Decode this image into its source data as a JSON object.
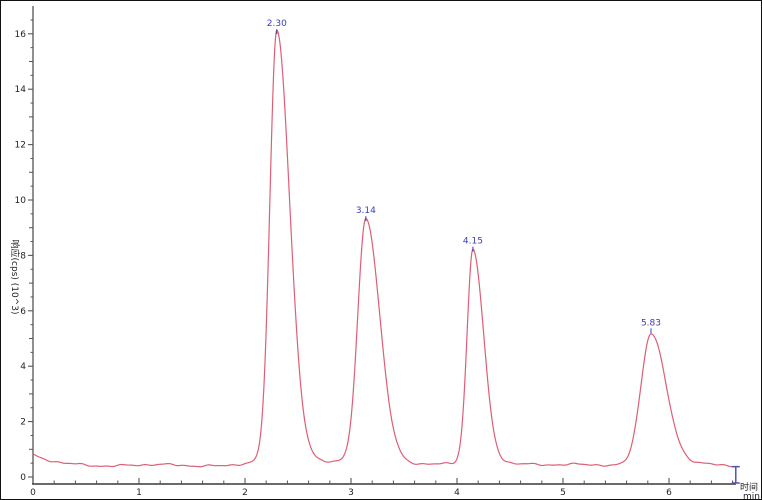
{
  "chart_data": {
    "type": "line",
    "subtype": "chromatogram",
    "title": "",
    "xlabel": "时间",
    "x_unit": "min",
    "ylabel": "响应(cps) (10^3)",
    "xlim": [
      0,
      6.63
    ],
    "ylim": [
      -0.25,
      17
    ],
    "grid": false,
    "legend": null,
    "x_major_ticks": [
      0,
      1,
      2,
      3,
      4,
      5,
      6
    ],
    "x_minor_step": 0.2,
    "y_major_ticks": [
      0,
      2,
      4,
      6,
      8,
      10,
      12,
      14,
      16
    ],
    "y_minor_step": 0.5,
    "axis_color": "#555555",
    "tick_label_color": "#222222",
    "peak_label_color": "#3b3bbb",
    "series": [
      {
        "name": "chromatogram-trace",
        "color": "#dd5f75",
        "baseline": {
          "start_value": 0.78,
          "settle_value": 0.42,
          "decay": 0.18
        },
        "peaks": [
          {
            "rt": 2.3,
            "label": "2.30",
            "apex_value": 15.95,
            "sigma_left": 0.065,
            "sigma_right": 0.12
          },
          {
            "rt": 3.14,
            "label": "3.14",
            "apex_value": 9.2,
            "sigma_left": 0.075,
            "sigma_right": 0.13
          },
          {
            "rt": 4.15,
            "label": "4.15",
            "apex_value": 8.1,
            "sigma_left": 0.055,
            "sigma_right": 0.1
          },
          {
            "rt": 5.83,
            "label": "5.83",
            "apex_value": 5.15,
            "sigma_left": 0.095,
            "sigma_right": 0.14
          }
        ]
      }
    ],
    "end_marker": {
      "t": 6.63,
      "color": "#5050c0"
    }
  }
}
